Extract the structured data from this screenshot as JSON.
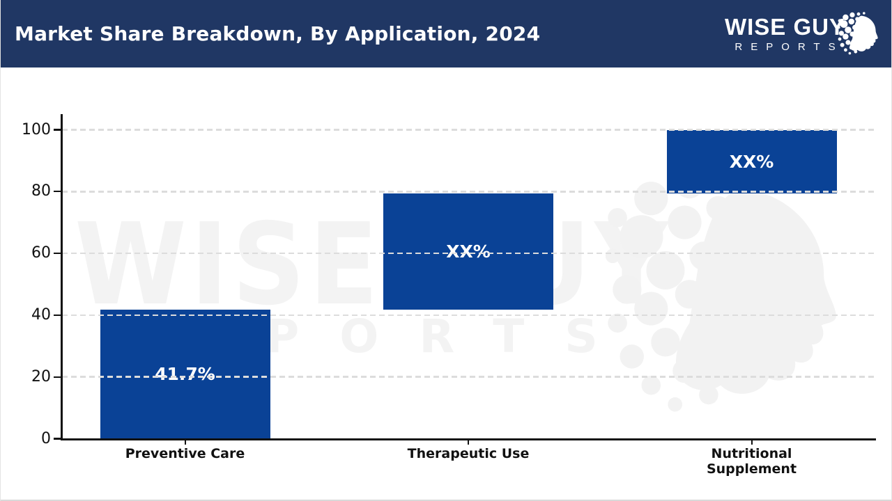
{
  "header": {
    "title": "Market Share Breakdown, By Application, 2024",
    "logo": {
      "wordmark": "WISE GUY",
      "subtext": "REPORTS"
    }
  },
  "watermark": {
    "wordmark": "WISE GUY",
    "subtext": "REPORTS"
  },
  "chart_data": {
    "type": "bar",
    "variant": "waterfall",
    "title": "Market Share Breakdown, By Application, 2024",
    "categories": [
      "Preventive Care",
      "Therapeutic Use",
      "Nutritional Supplement"
    ],
    "segments": [
      {
        "category": "Preventive Care",
        "start": 0,
        "end": 41.7,
        "label": "41.7%"
      },
      {
        "category": "Therapeutic Use",
        "start": 41.7,
        "end": 79.4,
        "label": "XX%"
      },
      {
        "category": "Nutritional Supplement",
        "start": 79.4,
        "end": 100,
        "label": "XX%"
      }
    ],
    "xlabel": "",
    "ylabel": "",
    "ylim": [
      0,
      100
    ],
    "yticks": [
      0,
      20,
      40,
      60,
      80,
      100
    ],
    "grid": {
      "axis": "y",
      "style": "dashed"
    },
    "legend_position": "none",
    "bar_color": "#0a4296",
    "bar_label_color": "#ffffff",
    "gridline_color": "#dcdcdc",
    "axis_color": "#111111"
  },
  "colors": {
    "header_bg": "#203764",
    "page_bg": "#ffffff",
    "watermark": "#f3f3f3",
    "bottom_rule": "#d9d9d9"
  }
}
